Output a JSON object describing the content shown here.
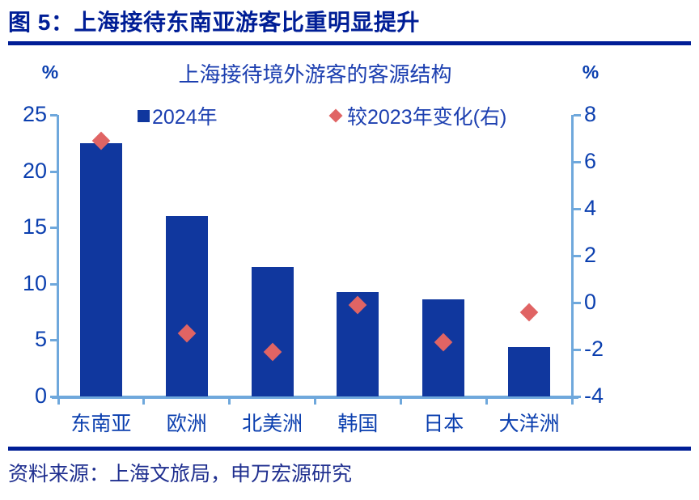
{
  "figure": {
    "title": "图 5：上海接待东南亚游客比重明显提升",
    "source": "资料来源：上海文旅局，申万宏源研究"
  },
  "chart_data": {
    "type": "bar",
    "title": "上海接待境外游客的客源结构",
    "categories": [
      "东南亚",
      "欧洲",
      "北美洲",
      "韩国",
      "日本",
      "大洋洲"
    ],
    "series": [
      {
        "name": "2024年",
        "type": "bar",
        "axis": "left",
        "marker": "square",
        "values": [
          22.5,
          16.0,
          11.5,
          9.3,
          8.6,
          4.4
        ]
      },
      {
        "name": "较2023年变化(右)",
        "type": "scatter",
        "axis": "right",
        "marker": "diamond",
        "values": [
          6.9,
          -1.3,
          -2.1,
          -0.1,
          -1.7,
          -0.4
        ]
      }
    ],
    "left_axis": {
      "label": "%",
      "min": 0,
      "max": 25,
      "ticks": [
        0,
        5,
        10,
        15,
        20,
        25
      ]
    },
    "right_axis": {
      "label": "%",
      "min": -4,
      "max": 8,
      "ticks": [
        -4,
        -2,
        0,
        2,
        4,
        6,
        8
      ]
    },
    "grid": false,
    "legend_position": "top"
  },
  "colors": {
    "bar": "#10379E",
    "diamond": "#E06464",
    "axis_line": "#6FA8DC",
    "tick_label": "#0B3FAF",
    "chart_title": "#1C3FB0",
    "header": "#001E96",
    "source_text": "#1F2F8F"
  }
}
